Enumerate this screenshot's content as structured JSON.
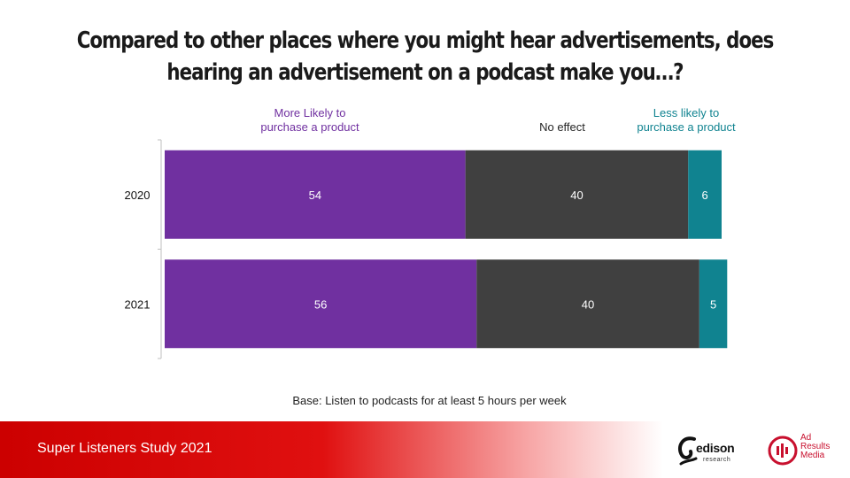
{
  "chart_data": {
    "type": "bar",
    "orientation": "horizontal",
    "stacked": true,
    "title_lines": [
      "Compared to other places where you might hear advertisements, does",
      "hearing an advertisement on a podcast make you…?"
    ],
    "categories": [
      "2020",
      "2021"
    ],
    "series": [
      {
        "name_lines": [
          "More Likely to",
          "purchase a product"
        ],
        "values": [
          54,
          56
        ],
        "color": "#7030a0",
        "label_color": "#7030a0"
      },
      {
        "name_lines": [
          "No effect"
        ],
        "values": [
          40,
          40
        ],
        "color": "#404040",
        "label_color": "#262626"
      },
      {
        "name_lines": [
          "Less likely to",
          "purchase a product"
        ],
        "values": [
          6,
          5
        ],
        "color": "#108390",
        "label_color": "#108390"
      }
    ],
    "xlim": [
      0,
      100
    ],
    "grid": false,
    "legend": "top",
    "data_labels": true
  },
  "note": "Base: Listen to podcasts for at least 5 hours per week",
  "footer": {
    "text": "Super Listeners Study 2021",
    "logos": {
      "edison": {
        "icon": "edison-research-logo",
        "name": "edison",
        "sub": "research"
      },
      "arm": {
        "icon": "ad-results-media-logo",
        "lines": [
          "Ad",
          "Results",
          "Media"
        ]
      }
    }
  }
}
